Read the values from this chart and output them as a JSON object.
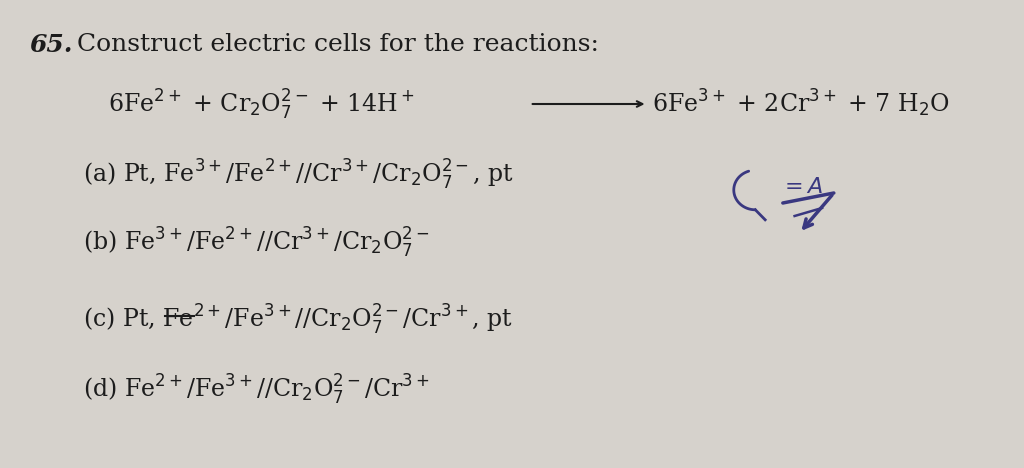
{
  "background_color": "#d6d2cc",
  "text_color": "#1c1c1c",
  "annotation_color": "#3a3880",
  "title_number": "65.",
  "title_text": " Construct electric cells for the reactions:",
  "reaction_left": "6Fe$^{2+}$ + Cr$_2$O$_7^{2-}$ + 14H$^+$",
  "reaction_arrow": "⟶",
  "reaction_right": "6Fe$^{3+}$ + 2Cr$^{3+}$ + 7 H$_2$O",
  "opt_a": "(a) Pt, Fe$^{3+}$/Fe$^{2+}$//Cr$^{3+}$/Cr$_2$O$_7^{2-}$, pt",
  "opt_b": "(b) Fe$^{3+}$/Fe$^{2+}$//Cr$^{3+}$/Cr$_2$O$_7^{2-}$",
  "opt_c": "(c) Pt, Fe$^{2+}$/Fe$^{3+}$//Cr$_2$O$_7^{2-}$/Cr$^{3+}$, pt",
  "opt_d": "(d) Fe$^{2+}$/Fe$^{3+}$//Cr$_2$O$_7^{2-}$/Cr$^{3+}$",
  "title_fontsize": 18,
  "body_fontsize": 17,
  "opt_fontsize": 17
}
